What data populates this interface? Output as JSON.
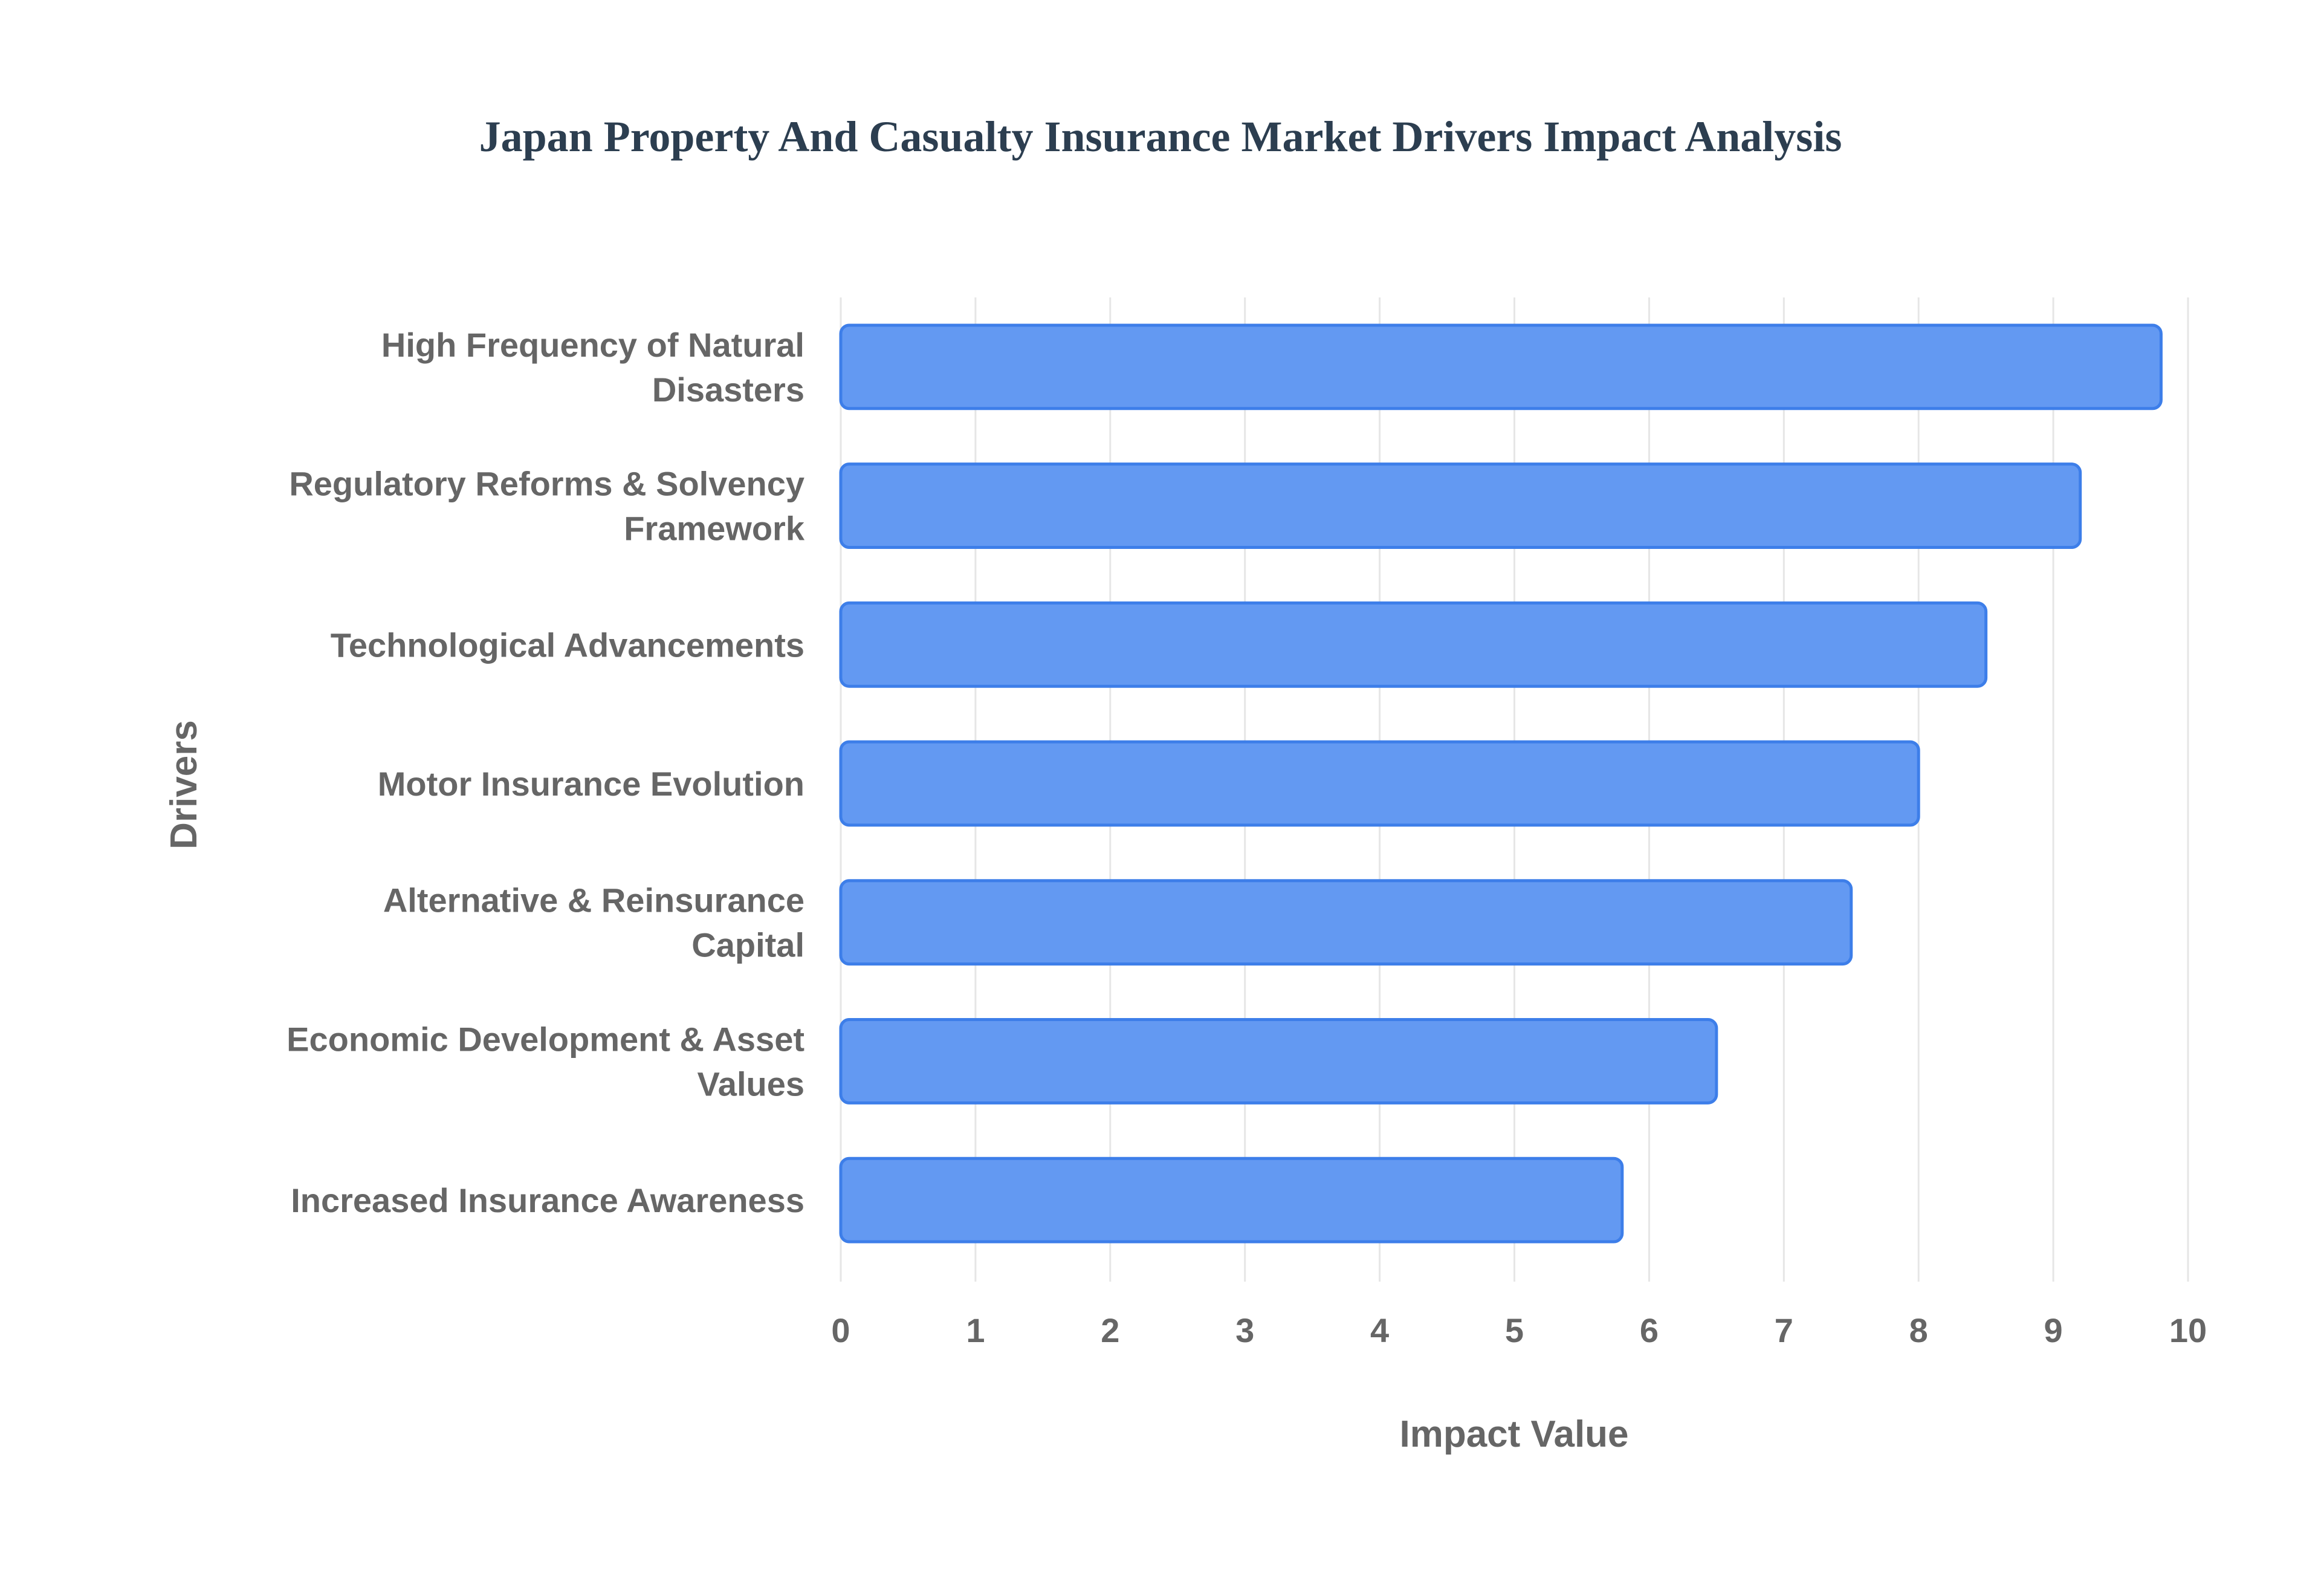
{
  "chart_data": {
    "type": "bar",
    "orientation": "horizontal",
    "title": "Japan Property And Casualty Insurance Market Drivers Impact Analysis",
    "xlabel": "Impact Value",
    "ylabel": "Drivers",
    "categories": [
      [
        "High Frequency of Natural",
        "Disasters"
      ],
      [
        "Regulatory Reforms & Solvency",
        "Framework"
      ],
      [
        "Technological Advancements"
      ],
      [
        "Motor Insurance Evolution"
      ],
      [
        "Alternative & Reinsurance",
        "Capital"
      ],
      [
        "Economic Development & Asset",
        "Values"
      ],
      [
        "Increased Insurance Awareness"
      ]
    ],
    "values": [
      9.8,
      9.2,
      8.5,
      8.0,
      7.5,
      6.5,
      5.8
    ],
    "xlim": [
      0,
      10
    ],
    "xticks": [
      "0",
      "1",
      "2",
      "3",
      "4",
      "5",
      "6",
      "7",
      "8",
      "9",
      "10"
    ],
    "grid": true,
    "legend": "none",
    "colors": {
      "bar_fill": "#6399f2",
      "bar_border": "#3d7ee9",
      "grid": "#e6e6e6",
      "text": "#666666",
      "title": "#2c3e50"
    }
  }
}
